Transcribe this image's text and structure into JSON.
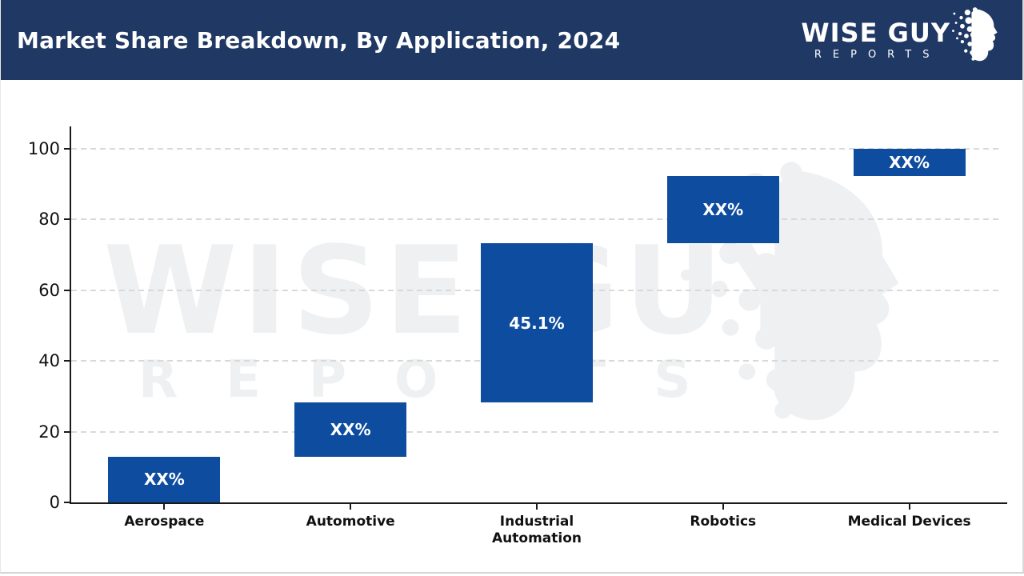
{
  "header": {
    "title": "Market Share Breakdown, By Application, 2024",
    "logo_name": "WISE GUY",
    "logo_subtitle": "REPORTS"
  },
  "watermark": {
    "line1": "WISE GUY",
    "line2": "REPORTS"
  },
  "colors": {
    "header_bg": "#1f3864",
    "bar": "#0d4c9e",
    "grid": "#d9d9d9",
    "axis": "#1a1a1a",
    "bar_label": "#ffffff",
    "watermark": "#eef0f2"
  },
  "chart_data": {
    "type": "bar",
    "subtype": "floating-segment-waterfall",
    "title": "Market Share Breakdown, By Application, 2024",
    "categories": [
      "Aerospace",
      "Automotive",
      "Industrial Automation",
      "Robotics",
      "Medical Devices"
    ],
    "segments": [
      {
        "start": 0,
        "end": 13
      },
      {
        "start": 13,
        "end": 28.2
      },
      {
        "start": 28.2,
        "end": 73.3
      },
      {
        "start": 73.3,
        "end": 92.3
      },
      {
        "start": 92.3,
        "end": 100
      }
    ],
    "segment_sizes": [
      13,
      15.2,
      45.1,
      19,
      7.7
    ],
    "bar_labels": [
      "XX%",
      "XX%",
      "45.1%",
      "XX%",
      "XX%"
    ],
    "xlabel": "",
    "ylabel": "",
    "ylim": [
      0,
      100
    ],
    "yticks": [
      0,
      20,
      40,
      60,
      80,
      100
    ],
    "grid": "horizontal-dashed",
    "legend": false
  }
}
